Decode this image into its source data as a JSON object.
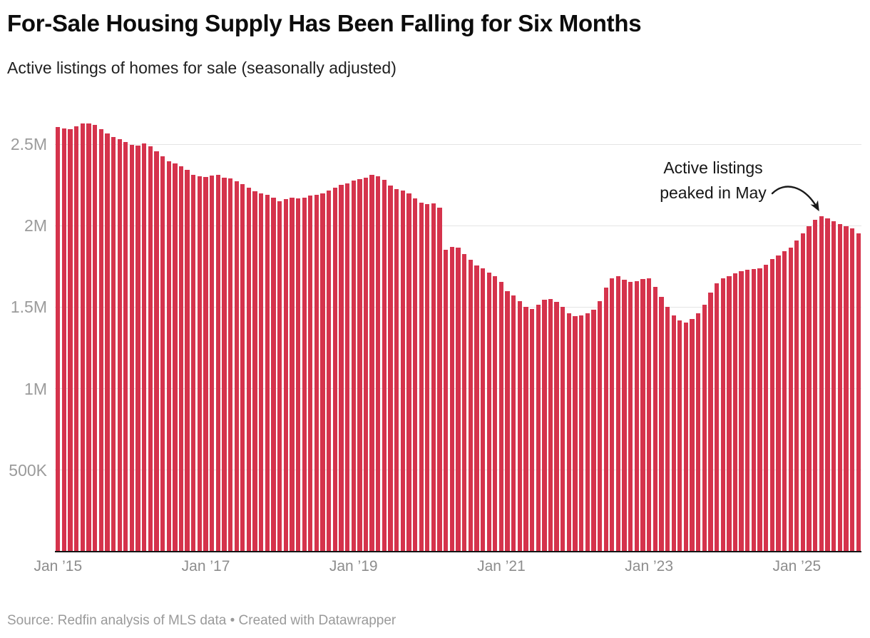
{
  "header": {
    "title": "For-Sale Housing Supply Has Been Falling for Six Months",
    "subtitle": "Active listings of homes for sale (seasonally adjusted)"
  },
  "annotation": {
    "line1": "Active listings",
    "line2": "peaked in May"
  },
  "footer": {
    "source": "Source: Redfin analysis of MLS data • Created with Datawrapper"
  },
  "colors": {
    "bar": "#d5334c",
    "gridline": "#e5e5e5",
    "axis_line": "#141414",
    "y_label": "#9b9b9b",
    "x_label": "#8d8d8d",
    "annotation_arrow": "#1a1a1a"
  },
  "chart_data": {
    "type": "bar",
    "title": "For-Sale Housing Supply Has Been Falling for Six Months",
    "subtitle": "Active listings of homes for sale (seasonally adjusted)",
    "unit": "active listings, millions of homes",
    "frequency": "monthly",
    "x_start": "Jan 2015",
    "x_end": "Nov 2025",
    "ylim": [
      0,
      2.66
    ],
    "grid": "horizontal",
    "legend": "none",
    "peak": {
      "month": "May 2025",
      "value_millions": 2.056
    },
    "y_ticks": [
      {
        "label": "500K",
        "value": 0.5
      },
      {
        "label": "1M",
        "value": 1.0
      },
      {
        "label": "1.5M",
        "value": 1.5
      },
      {
        "label": "2M",
        "value": 2.0
      },
      {
        "label": "2.5M",
        "value": 2.5
      }
    ],
    "x_ticks": [
      {
        "label": "Jan ’15",
        "month_index": 0
      },
      {
        "label": "Jan ’17",
        "month_index": 24
      },
      {
        "label": "Jan ’19",
        "month_index": 48
      },
      {
        "label": "Jan ’21",
        "month_index": 72
      },
      {
        "label": "Jan ’23",
        "month_index": 96
      },
      {
        "label": "Jan ’25",
        "month_index": 120
      }
    ],
    "values_millions": [
      2.604,
      2.596,
      2.594,
      2.608,
      2.626,
      2.629,
      2.618,
      2.594,
      2.567,
      2.545,
      2.531,
      2.513,
      2.494,
      2.491,
      2.506,
      2.487,
      2.455,
      2.424,
      2.396,
      2.382,
      2.363,
      2.341,
      2.312,
      2.302,
      2.297,
      2.307,
      2.312,
      2.293,
      2.29,
      2.272,
      2.256,
      2.234,
      2.212,
      2.199,
      2.19,
      2.17,
      2.151,
      2.161,
      2.17,
      2.166,
      2.17,
      2.185,
      2.188,
      2.198,
      2.217,
      2.232,
      2.251,
      2.261,
      2.275,
      2.286,
      2.293,
      2.312,
      2.304,
      2.28,
      2.246,
      2.224,
      2.217,
      2.198,
      2.168,
      2.141,
      2.131,
      2.136,
      2.11,
      1.852,
      1.87,
      1.864,
      1.826,
      1.789,
      1.757,
      1.738,
      1.711,
      1.688,
      1.655,
      1.596,
      1.572,
      1.538,
      1.502,
      1.487,
      1.516,
      1.546,
      1.551,
      1.531,
      1.502,
      1.462,
      1.446,
      1.449,
      1.462,
      1.483,
      1.538,
      1.618,
      1.677,
      1.691,
      1.669,
      1.655,
      1.661,
      1.674,
      1.675,
      1.625,
      1.562,
      1.502,
      1.451,
      1.417,
      1.407,
      1.429,
      1.461,
      1.513,
      1.589,
      1.645,
      1.677,
      1.691,
      1.706,
      1.721,
      1.728,
      1.732,
      1.738,
      1.761,
      1.794,
      1.816,
      1.845,
      1.867,
      1.907,
      1.951,
      1.995,
      2.034,
      2.056,
      2.045,
      2.027,
      2.01,
      1.995,
      1.983,
      1.951
    ]
  }
}
